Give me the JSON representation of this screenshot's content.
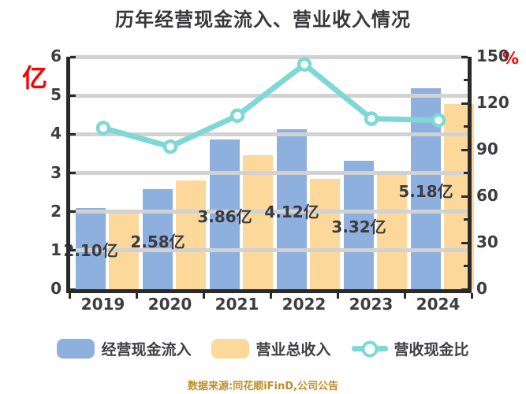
{
  "title": "历年经营现金流入、营业收入情况",
  "units": {
    "left": "亿",
    "right": "%"
  },
  "caption": "数据来源:同花顺iFinD,公司公告",
  "chart_data": {
    "type": "bar",
    "subtype": "grouped-bars-with-line",
    "categories": [
      "2019",
      "2020",
      "2021",
      "2022",
      "2023",
      "2024"
    ],
    "series": [
      {
        "name": "经营现金流入",
        "type": "bar",
        "axis": "left",
        "color": "#8eb0df",
        "values": [
          2.1,
          2.58,
          3.86,
          4.12,
          3.32,
          5.18
        ],
        "labels": [
          "2.10亿",
          "2.58亿",
          "3.86亿",
          "4.12亿",
          "3.32亿",
          "5.18亿"
        ]
      },
      {
        "name": "营业总收入",
        "type": "bar",
        "axis": "left",
        "color": "#fcd99b",
        "values": [
          2.0,
          2.8,
          3.45,
          2.85,
          3.0,
          4.77
        ]
      },
      {
        "name": "营收现金比",
        "type": "line",
        "axis": "right",
        "color": "#7ed8d6",
        "values": [
          104,
          92,
          112,
          145,
          110,
          109
        ]
      }
    ],
    "left_axis": {
      "min": 0,
      "max": 6,
      "ticks": [
        0,
        1,
        2,
        3,
        4,
        5,
        6
      ]
    },
    "right_axis": {
      "min": 0,
      "max": 150,
      "ticks": [
        0,
        30,
        60,
        90,
        120,
        150
      ]
    },
    "grid": true,
    "legend_position": "bottom",
    "grid_color": "#d2d2d2",
    "axis_color": "#2a2a2a",
    "label_color": "#3c3c40",
    "unit_color": "#fe0000"
  }
}
